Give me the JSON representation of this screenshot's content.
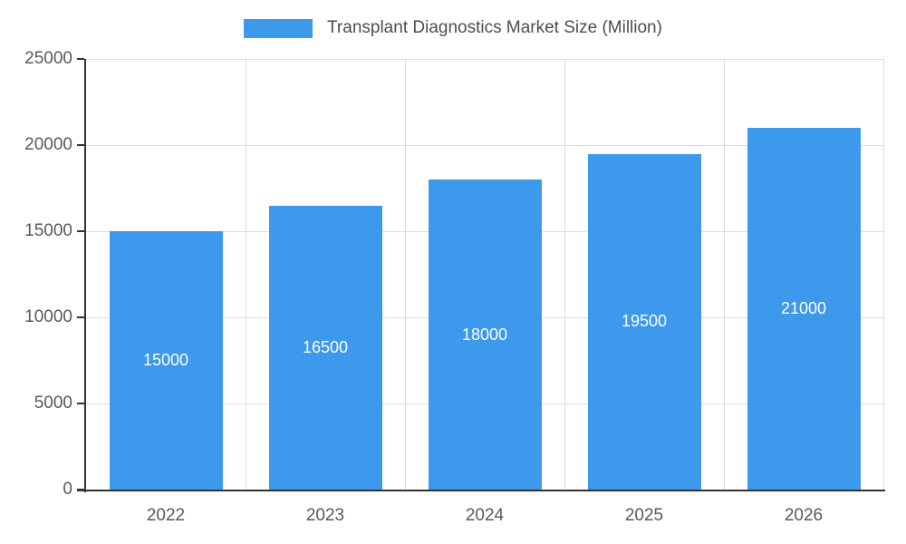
{
  "legend": {
    "title": "Transplant Diagnostics Market Size (Million)"
  },
  "chart_data": {
    "type": "bar",
    "title": "Transplant Diagnostics Market Size (Million)",
    "categories": [
      "2022",
      "2023",
      "2024",
      "2025",
      "2026"
    ],
    "values": [
      15000,
      16500,
      18000,
      19500,
      21000
    ],
    "value_labels": [
      "15000",
      "16500",
      "18000",
      "19500",
      "21000"
    ],
    "xlabel": "",
    "ylabel": "",
    "ylim": [
      0,
      25000
    ],
    "ytick_step": 5000,
    "y_tick_labels": [
      "0",
      "5000",
      "10000",
      "15000",
      "20000",
      "25000"
    ],
    "bar_color": "#3c99eb",
    "value_label_color": "#ffffff",
    "axis_color": "#333333",
    "grid_color": "#dddddd",
    "grid": true,
    "legend_position": "top-center"
  }
}
